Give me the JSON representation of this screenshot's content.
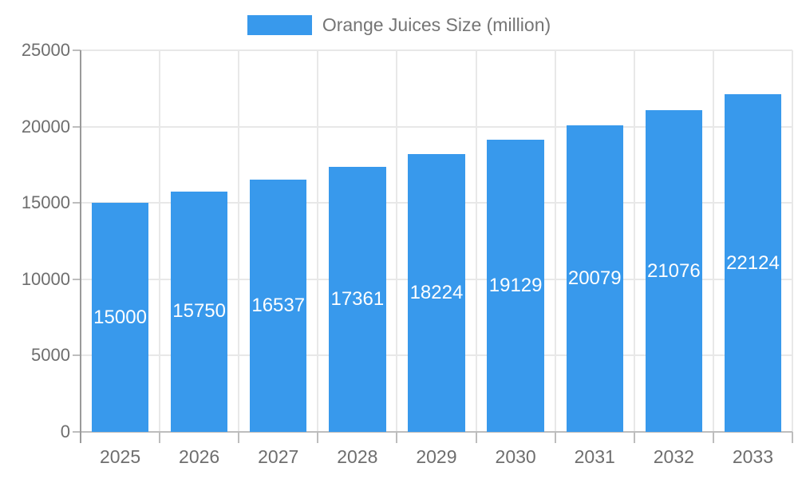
{
  "legend": {
    "label": "Orange Juices Size (million)"
  },
  "colors": {
    "bar": "#3899EC",
    "bar_label_text": "#FFFFFF",
    "legend_text": "#757575",
    "axis_text": "#6E6E6E",
    "grid": "#E8E8E8",
    "y_axis_line": "#9A9A9A",
    "x_axis_line": "#BDBDBD",
    "tick": "#BDBDBD",
    "background": "#FFFFFF"
  },
  "chart_data": {
    "type": "bar",
    "title": "",
    "xlabel": "",
    "ylabel": "",
    "categories": [
      "2025",
      "2026",
      "2027",
      "2028",
      "2029",
      "2030",
      "2031",
      "2032",
      "2033"
    ],
    "values": [
      15000,
      15750,
      16537,
      17361,
      18224,
      19129,
      20079,
      21076,
      22124
    ],
    "series_name": "Orange Juices Size (million)",
    "data_labels_visible": true,
    "ylim": [
      0,
      25000
    ],
    "yticks": [
      0,
      5000,
      10000,
      15000,
      20000,
      25000
    ],
    "grid": true,
    "legend_position": "top"
  }
}
